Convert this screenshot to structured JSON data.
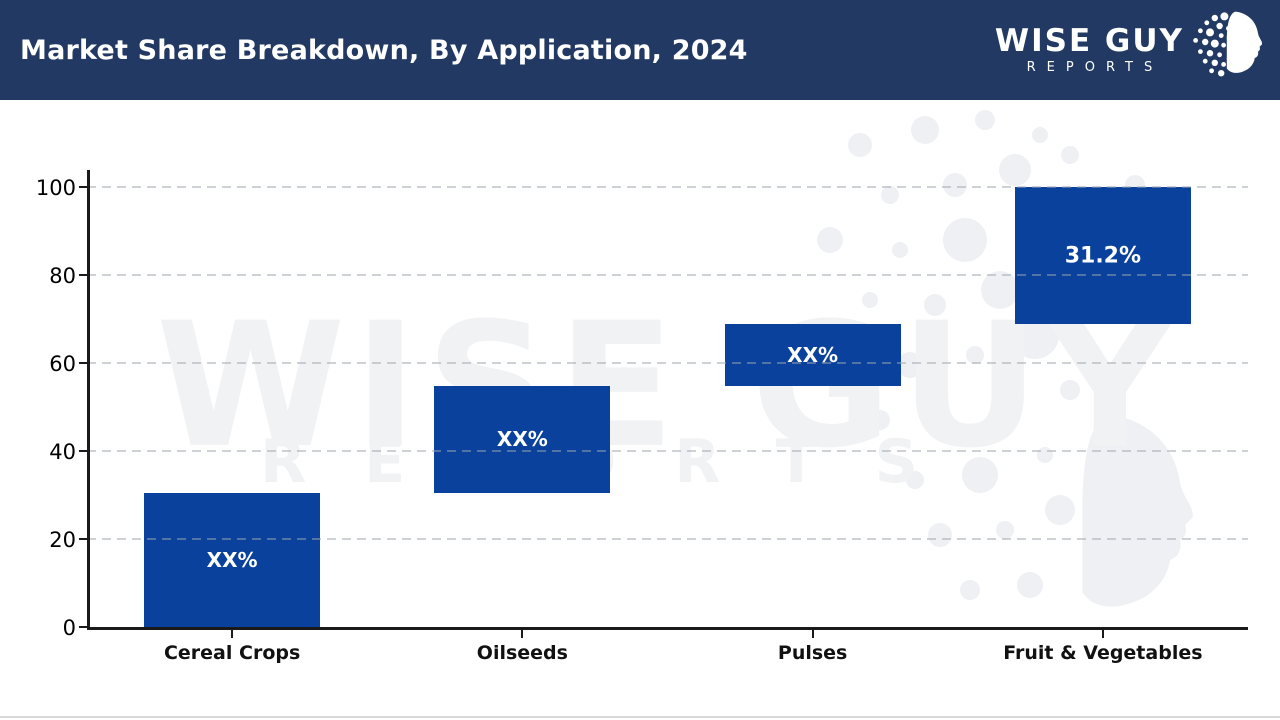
{
  "header": {
    "title": "Market Share Breakdown, By Application, 2024",
    "background_color": "#223963",
    "logo": {
      "line1": "WISE GUY",
      "line2": "REPORTS"
    }
  },
  "watermark": {
    "line1": "WISE GUY",
    "line2": "REPORTS"
  },
  "colors": {
    "bar": "#0a419c",
    "bar_label": "#ffffff",
    "header_navy": "#223963",
    "gridline": "#d9d9d9",
    "axis": "#1a1a1a",
    "watermark": "#f1f2f4"
  },
  "chart_data": {
    "type": "bar",
    "subtype": "floating_waterfall_segments",
    "title": "Market Share Breakdown, By Application, 2024",
    "categories": [
      "Cereal Crops",
      "Oilseeds",
      "Pulses",
      "Fruit & Vegetables"
    ],
    "segments": [
      {
        "category": "Cereal Crops",
        "start": 0,
        "end": 30.5,
        "label": "XX%"
      },
      {
        "category": "Oilseeds",
        "start": 30.5,
        "end": 54.8,
        "label": "XX%"
      },
      {
        "category": "Pulses",
        "start": 54.8,
        "end": 68.8,
        "label": "XX%"
      },
      {
        "category": "Fruit & Vegetables",
        "start": 68.8,
        "end": 100,
        "label": "31.2%"
      }
    ],
    "xlabel": "",
    "ylabel": "",
    "ylim": [
      0,
      100
    ],
    "yticks": [
      0,
      20,
      40,
      60,
      80,
      100
    ],
    "grid": {
      "axis": "y",
      "style": "dashed",
      "drawn_over_bars": true
    },
    "legend": "none",
    "bar_color": "#0a419c",
    "bar_label_color": "#ffffff"
  }
}
